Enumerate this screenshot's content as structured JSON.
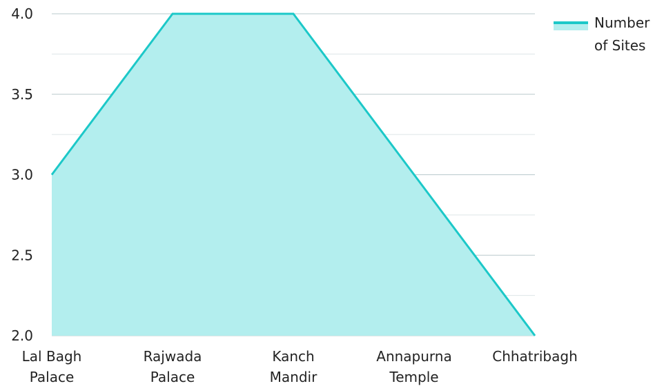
{
  "chart_data": {
    "type": "area",
    "categories": [
      [
        "Lal Bagh",
        "Palace"
      ],
      [
        "Rajwada",
        "Palace"
      ],
      [
        "Kanch",
        "Mandir"
      ],
      [
        "Annapurna",
        "Temple"
      ],
      [
        "Chhatribagh"
      ]
    ],
    "series": [
      {
        "name": "Number of Sites",
        "values": [
          3,
          4,
          4,
          3,
          2
        ]
      }
    ],
    "legend_lines": [
      "Number",
      "of Sites"
    ],
    "ylim": [
      2.0,
      4.0
    ],
    "yticks": [
      "2.0",
      "2.5",
      "3.0",
      "3.5",
      "4.0"
    ],
    "grid": true,
    "legend_position": "top-right",
    "colors": {
      "line": "#1cc8c8",
      "fill": "#b3eeee",
      "grid_major": "#b9c9cc",
      "grid_minor": "#dde5e7"
    }
  }
}
